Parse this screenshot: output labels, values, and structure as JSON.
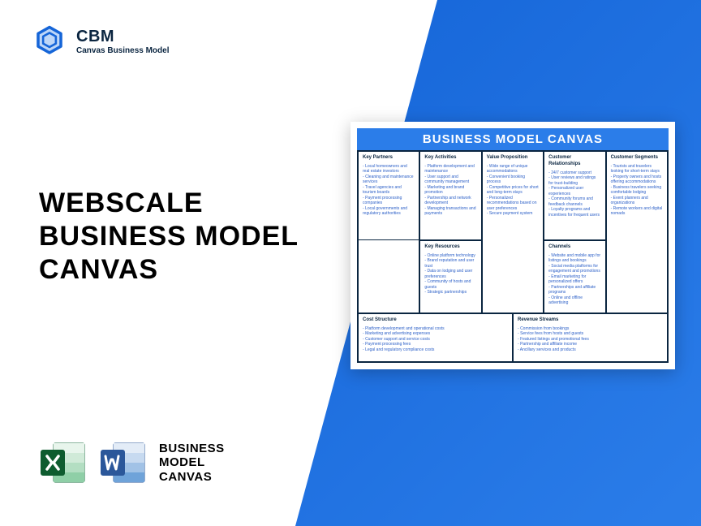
{
  "logo": {
    "title": "CBM",
    "subtitle": "Canvas Business Model"
  },
  "main_title": {
    "line1": "WEBSCALE",
    "line2": "BUSINESS MODEL",
    "line3": "CANVAS"
  },
  "bottom": {
    "line1": "BUSINESS",
    "line2": "MODEL",
    "line3": "CANVAS"
  },
  "colors": {
    "primary_blue": "#2b7de9",
    "dark_blue": "#1565d8",
    "navy": "#0a2540",
    "excel_green": "#1d6f42",
    "excel_dark": "#0e5c2f",
    "word_blue": "#2b579a",
    "word_light": "#4a8ad4",
    "link_blue": "#2b5fc7",
    "white": "#ffffff"
  },
  "canvas": {
    "header": "BUSINESS MODEL CANVAS",
    "cells": {
      "key_partners": {
        "title": "Key Partners",
        "items": [
          "Local homeowners and real estate investors",
          "Cleaning and maintenance services",
          "Travel agencies and tourism boards",
          "Payment processing companies",
          "Local governments and regulatory authorities"
        ]
      },
      "key_activities": {
        "title": "Key Activities",
        "items": [
          "Platform development and maintenance",
          "User support and community management",
          "Marketing and brand promotion",
          "Partnership and network development",
          "Managing transactions and payments"
        ]
      },
      "value_proposition": {
        "title": "Value Proposition",
        "items": [
          "Wide range of unique accommodations",
          "Convenient booking process",
          "Competitive prices for short and long-term stays",
          "Personalized recommendations based on user preferences",
          "Secure payment system"
        ]
      },
      "customer_relationships": {
        "title": "Customer Relationships",
        "items": [
          "24/7 customer support",
          "User reviews and ratings for trust-building",
          "Personalized user experiences",
          "Community forums and feedback channels",
          "Loyalty programs and incentives for frequent users"
        ]
      },
      "customer_segments": {
        "title": "Customer Segments",
        "items": [
          "Tourists and travelers looking for short-term stays",
          "Property owners and hosts offering accommodations",
          "Business travelers seeking comfortable lodging",
          "Event planners and organizations",
          "Remote workers and digital nomads"
        ]
      },
      "key_resources": {
        "title": "Key Resources",
        "items": [
          "Online platform technology",
          "Brand reputation and user trust",
          "Data on lodging and user preferences",
          "Community of hosts and guests",
          "Strategic partnerships"
        ]
      },
      "channels": {
        "title": "Channels",
        "items": [
          "Website and mobile app for listings and bookings",
          "Social media platforms for engagement and promotions",
          "Email marketing for personalized offers",
          "Partnerships and affiliate programs",
          "Online and offline advertising"
        ]
      },
      "cost_structure": {
        "title": "Cost Structure",
        "items": [
          "Platform development and operational costs",
          "Marketing and advertising expenses",
          "Customer support and service costs",
          "Payment processing fees",
          "Legal and regulatory compliance costs"
        ]
      },
      "revenue_streams": {
        "title": "Revenue Streams",
        "items": [
          "Commission from bookings",
          "Service fees from hosts and guests",
          "Featured listings and promotional fees",
          "Partnership and affiliate income",
          "Ancillary services and products"
        ]
      }
    }
  }
}
